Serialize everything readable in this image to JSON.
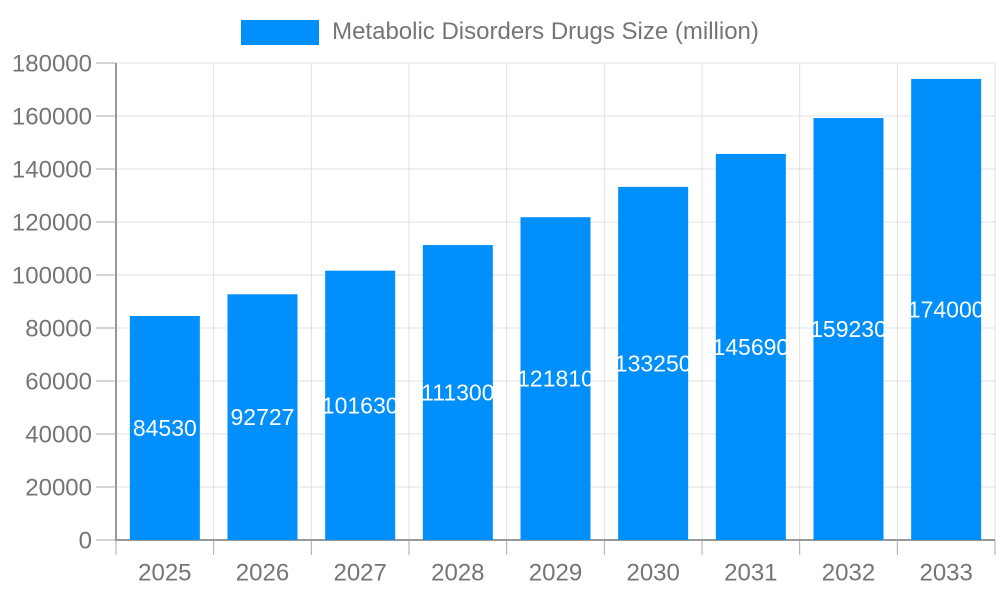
{
  "chart_data": {
    "type": "bar",
    "title": "Metabolic Disorders Drugs Size (million)",
    "categories": [
      "2025",
      "2026",
      "2027",
      "2028",
      "2029",
      "2030",
      "2031",
      "2032",
      "2033"
    ],
    "values": [
      84530,
      92727,
      101630,
      111300,
      121810,
      133250,
      145690,
      159230,
      174000
    ],
    "value_labels": [
      "84530",
      "92727",
      "101630",
      "111300",
      "121810",
      "133250",
      "145690",
      "159230",
      "174000"
    ],
    "xlabel": "",
    "ylabel": "",
    "ylim": [
      0,
      180000
    ],
    "y_tick_step": 20000,
    "y_tick_labels": [
      "0",
      "20000",
      "40000",
      "60000",
      "80000",
      "100000",
      "120000",
      "140000",
      "160000",
      "180000"
    ],
    "grid": "on",
    "legend_position": "top",
    "colors": {
      "bar": "#008FFB",
      "grid": "#E0E0E0",
      "axis": "#999999",
      "tick": "#AAAAAA",
      "axis_label": "#757575",
      "value_label": "#FFFFFF",
      "background": "#FFFFFF"
    }
  }
}
